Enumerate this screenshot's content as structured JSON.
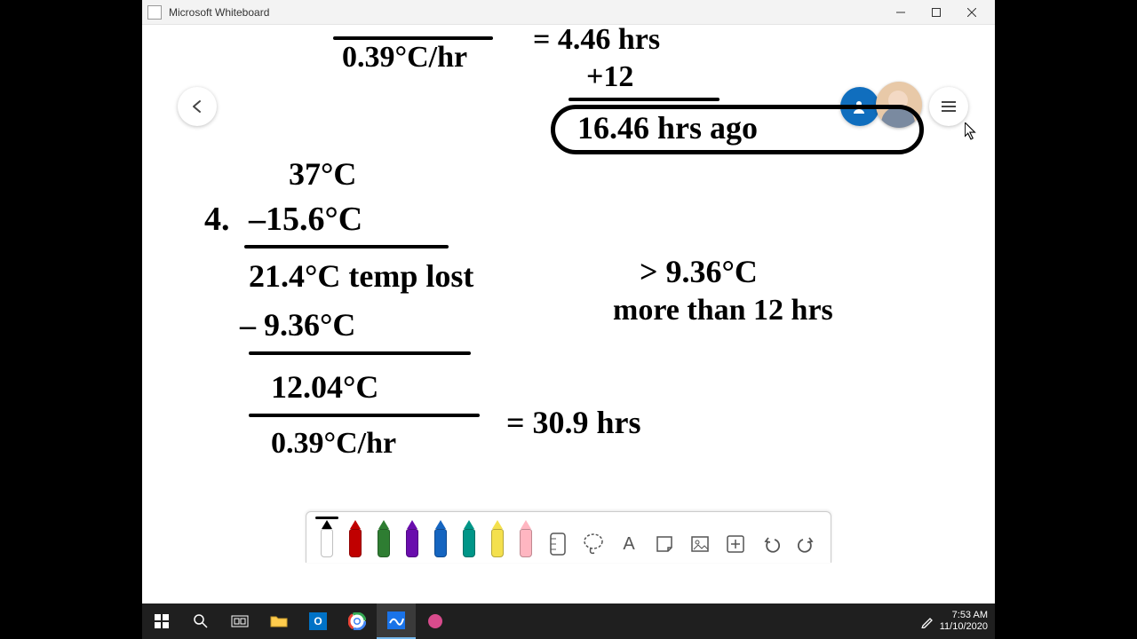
{
  "window": {
    "title": "Microsoft Whiteboard"
  },
  "colors": {
    "accent": "#106ebe",
    "ink": "#000000",
    "taskbar": "#1f1f1f"
  },
  "handwriting": {
    "line1_denom": "0.39°C/hr",
    "line1_res": "= 4.46 hrs",
    "plus12": "+12",
    "capsule": "16.46 hrs ago",
    "p4_number": "4.",
    "p4_top": "37°C",
    "p4_sub": "–15.6°C",
    "p4_diff": "21.4°C temp lost",
    "p4_cmp": "> 9.36°C",
    "p4_note": "more than 12 hrs",
    "p4_minus": "– 9.36°C",
    "p4_mid": "12.04°C",
    "p4_denom2": "0.39°C/hr",
    "p4_res2": "= 30.9 hrs"
  },
  "pentray": {
    "pens": [
      {
        "color": "#000000",
        "body": "#ffffff",
        "active": true
      },
      {
        "color": "#c00000",
        "body": "#c00000"
      },
      {
        "color": "#2e7d32",
        "body": "#2e7d32"
      },
      {
        "color": "#6a0dad",
        "body": "#6a0dad"
      },
      {
        "color": "#1565c0",
        "body": "#1565c0"
      },
      {
        "color": "#009688",
        "body": "#009688"
      },
      {
        "color": "#f4e04d",
        "body": "#f4e04d"
      },
      {
        "color": "#ffb6c1",
        "body": "#ffb6c1"
      }
    ]
  },
  "taskbar": {
    "time": "7:53 AM",
    "date": "11/10/2020"
  }
}
